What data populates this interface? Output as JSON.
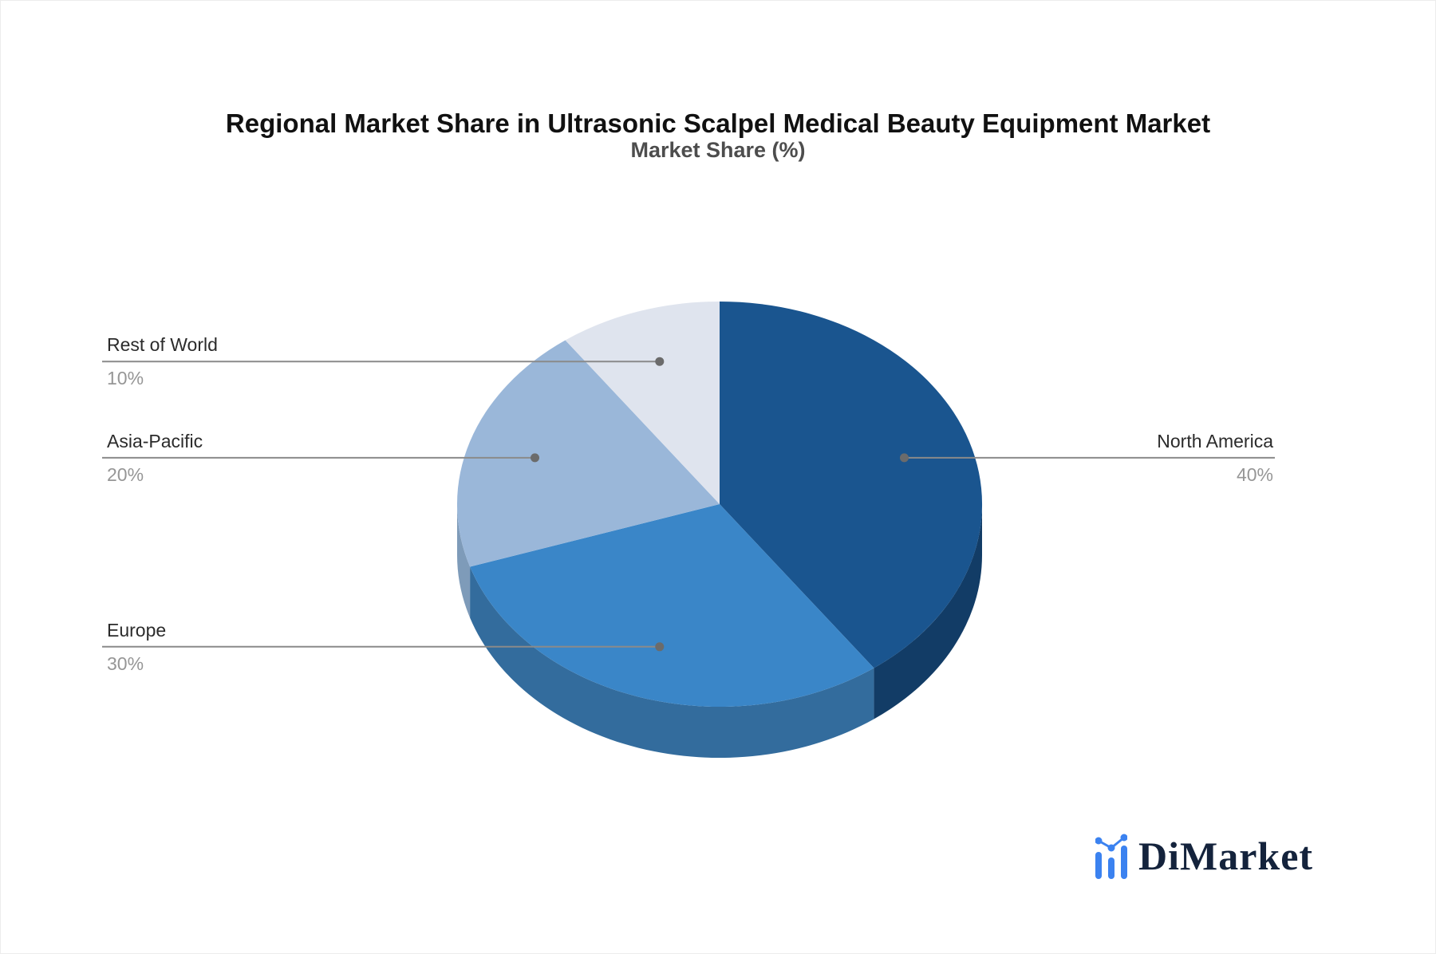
{
  "header": {
    "title": "Regional Market Share in Ultrasonic Scalpel Medical Beauty Equipment Market",
    "subtitle": "Market Share (%)"
  },
  "chart_data": {
    "type": "pie",
    "style": "3d",
    "title": "Regional Market Share in Ultrasonic Scalpel Medical Beauty Equipment Market",
    "subtitle": "Market Share (%)",
    "unit": "%",
    "start_angle_deg": 0,
    "direction": "clockwise",
    "legend_position": "callout-labels",
    "slices": [
      {
        "label": "North America",
        "value": 40,
        "pct_label": "40%",
        "color": "#1a558f",
        "side_color": "#123c66",
        "callout_side": "right"
      },
      {
        "label": "Europe",
        "value": 30,
        "pct_label": "30%",
        "color": "#3a86c8",
        "side_color": "#336c9d",
        "callout_side": "left"
      },
      {
        "label": "Asia-Pacific",
        "value": 20,
        "pct_label": "20%",
        "color": "#9ab7d9",
        "side_color": "#7e9bb9",
        "callout_side": "left"
      },
      {
        "label": "Rest of World",
        "value": 10,
        "pct_label": "10%",
        "color": "#dfe4ee",
        "side_color": "#c5cfdf",
        "callout_side": "left"
      }
    ],
    "callout": {
      "line_color": "#8a8a8a",
      "dot_color": "#6b6b6b"
    }
  },
  "branding": {
    "logo_text": "DiMarket",
    "logo_icon": "bar-chart-trend-icon",
    "icon_color": "#3b82f0",
    "text_color": "#14233c"
  }
}
